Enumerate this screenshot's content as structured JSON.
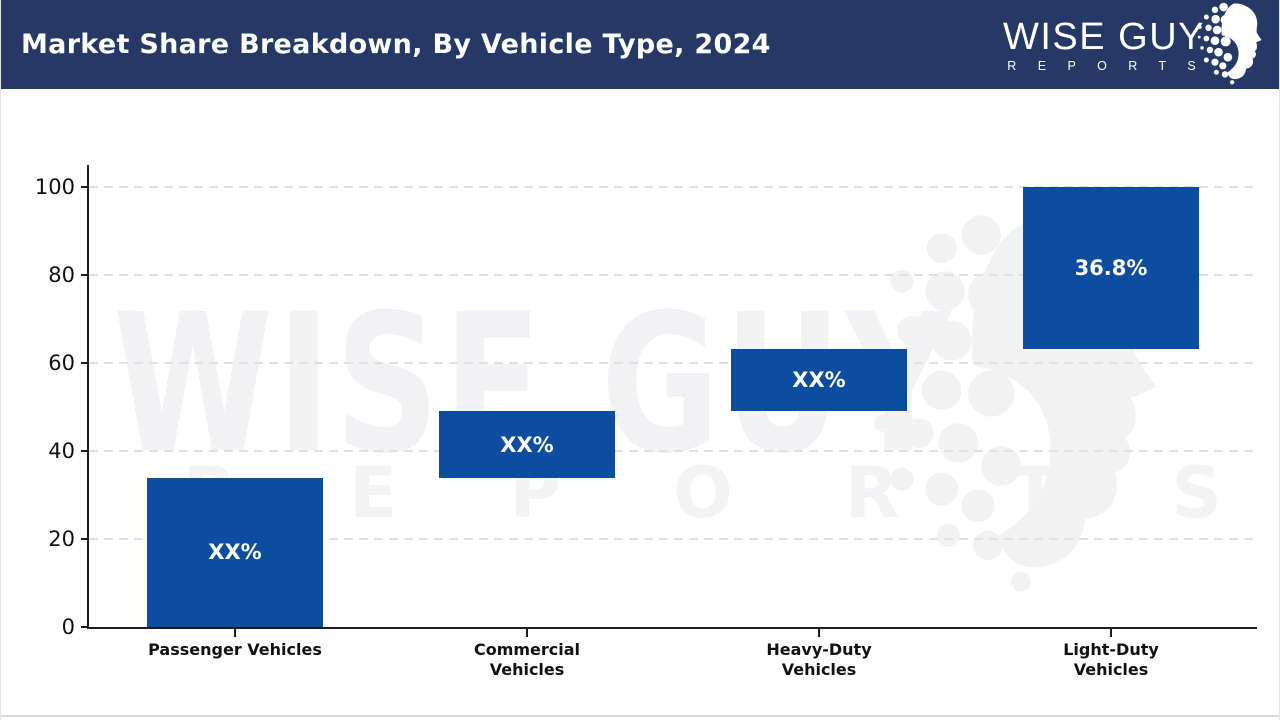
{
  "header": {
    "title": "Market Share Breakdown, By Vehicle Type, 2024",
    "logo": {
      "wordmark": "WISE GUY",
      "tagline": "R E P O R T S"
    }
  },
  "watermark": {
    "wordmark": "WISE GUY",
    "tagline": "R E P O R T S"
  },
  "chart_data": {
    "type": "bar",
    "subtype": "waterfall",
    "title": "Market Share Breakdown, By Vehicle Type, 2024",
    "categories": [
      "Passenger Vehicles",
      "Commercial Vehicles",
      "Heavy-Duty Vehicles",
      "Light-Duty Vehicles"
    ],
    "tick_label_lines": [
      [
        "Passenger Vehicles"
      ],
      [
        "Commercial",
        "Vehicles"
      ],
      [
        "Heavy-Duty",
        "Vehicles"
      ],
      [
        "Light-Duty",
        "Vehicles"
      ]
    ],
    "segments": [
      {
        "category": "Passenger Vehicles",
        "start": 0,
        "end": 33.9,
        "value": 33.9,
        "label": "XX%"
      },
      {
        "category": "Commercial Vehicles",
        "start": 33.9,
        "end": 49.0,
        "value": 15.1,
        "label": "XX%"
      },
      {
        "category": "Heavy-Duty Vehicles",
        "start": 49.0,
        "end": 63.2,
        "value": 14.2,
        "label": "XX%"
      },
      {
        "category": "Light-Duty Vehicles",
        "start": 63.2,
        "end": 100,
        "value": 36.8,
        "label": "36.8%"
      }
    ],
    "yticks": [
      0,
      20,
      40,
      60,
      80,
      100
    ],
    "ylim": [
      0,
      104
    ],
    "grid": true,
    "legend": false,
    "xlabel": "",
    "ylabel": ""
  },
  "colors": {
    "header_bg": "#253866",
    "header_text": "#ffffff",
    "bar": "#0c4da0",
    "bar_label": "#ffffff",
    "axis": "#1c1c1c",
    "grid": "#e0e0e0",
    "watermark": "#f2f2f4",
    "page_bg": "#ffffff"
  }
}
